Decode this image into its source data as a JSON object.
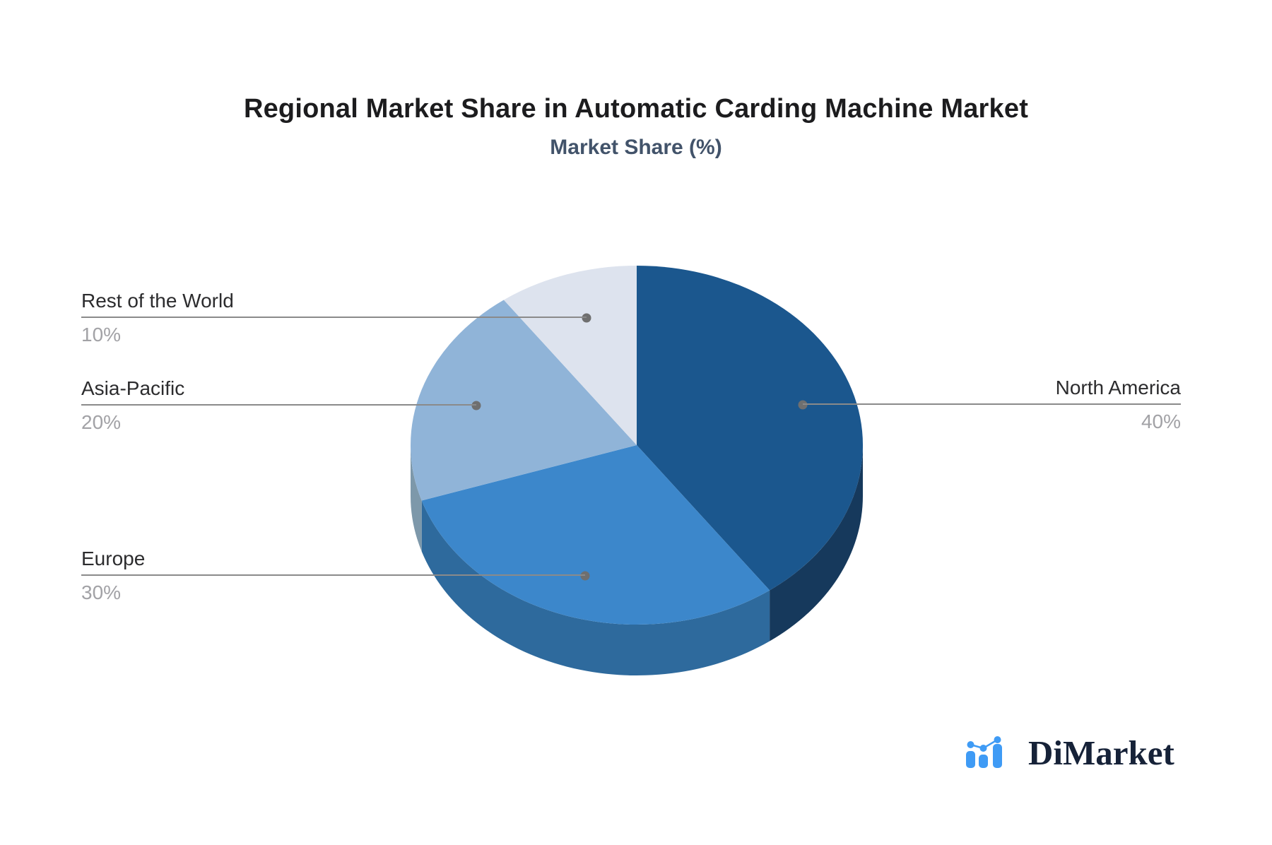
{
  "chart_data": {
    "type": "pie",
    "style": "3d",
    "title": "Regional Market Share in Automatic Carding Machine Market",
    "subtitle": "Market Share (%)",
    "direction": "clockwise",
    "start_angle_deg": 0,
    "legend_position": "leader-labels",
    "unit": "%",
    "slices": [
      {
        "name": "North America",
        "value": 40,
        "pct": "40%",
        "color": "#1b578e",
        "side_color": "#16395c"
      },
      {
        "name": "Europe",
        "value": 30,
        "pct": "30%",
        "color": "#3c87cb",
        "side_color": "#2e6a9d"
      },
      {
        "name": "Asia-Pacific",
        "value": 20,
        "pct": "20%",
        "color": "#90b4d8",
        "side_color": "#7d98aa"
      },
      {
        "name": "Rest of the World",
        "value": 10,
        "pct": "10%",
        "color": "#dde3ee",
        "side_color": "#c3cde0"
      }
    ]
  },
  "branding": {
    "logo_text": "DiMarket",
    "logo_text_color": "#162238",
    "logo_icon_color": "#3f9bf5"
  }
}
